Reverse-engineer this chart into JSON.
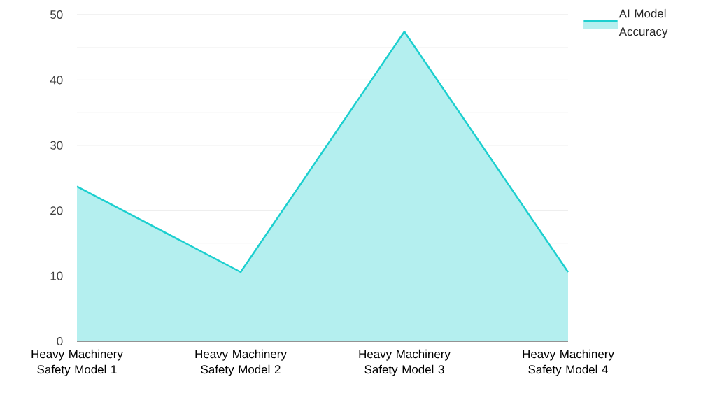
{
  "chart_data": {
    "type": "area",
    "categories": [
      "Heavy Machinery Safety Model 1",
      "Heavy Machinery Safety Model 2",
      "Heavy Machinery Safety Model 3",
      "Heavy Machinery Safety Model 4"
    ],
    "series": [
      {
        "name": "AI Model Accuracy",
        "color": "#1ccfcf",
        "values": [
          23.7,
          10.6,
          47.4,
          10.6
        ]
      }
    ],
    "ylim": [
      0,
      50
    ],
    "yticks": [
      0,
      10,
      20,
      30,
      40,
      50
    ],
    "grid": "y",
    "legend": "top right"
  }
}
